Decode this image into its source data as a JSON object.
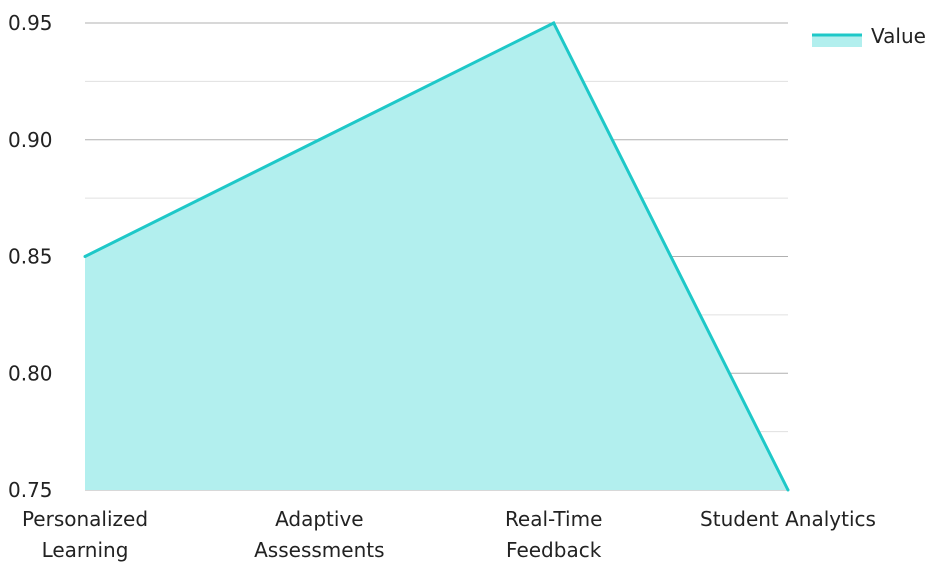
{
  "chart_data": {
    "type": "area",
    "categories": [
      [
        "Personalized",
        "Learning"
      ],
      [
        "Adaptive",
        "Assessments"
      ],
      [
        "Real-Time",
        "Feedback"
      ],
      [
        "Student Analytics"
      ]
    ],
    "series": [
      {
        "name": "Value",
        "values": [
          0.85,
          0.9,
          0.95,
          0.75
        ]
      }
    ],
    "yticks": [
      "0.75",
      "0.80",
      "0.85",
      "0.90",
      "0.95"
    ],
    "ylim": [
      0.75,
      0.95
    ],
    "grid": true,
    "legend": "top-right",
    "colors": {
      "line": "#1ec8c8",
      "fill": "#b2efee",
      "grid_major": "#b0b0b0",
      "grid_minor": "#e0e0e0",
      "axis_text": "#222222"
    }
  }
}
